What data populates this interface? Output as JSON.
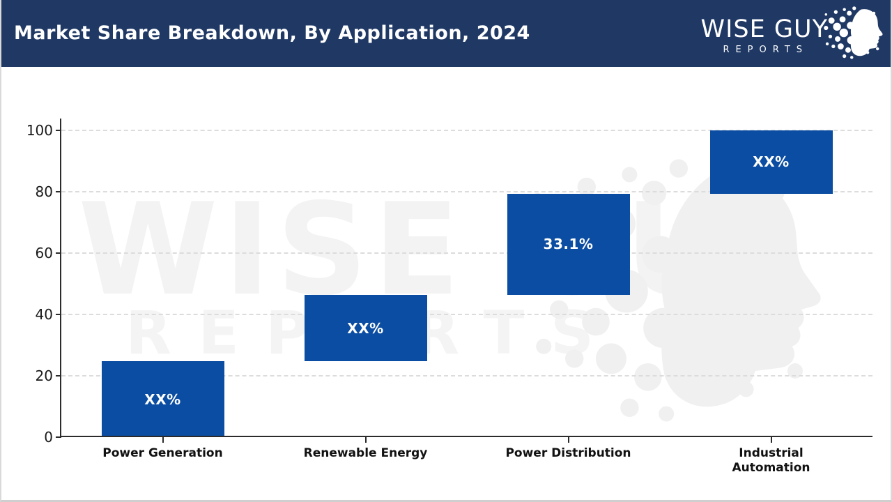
{
  "header": {
    "title": "Market Share Breakdown, By Application, 2024",
    "logo": {
      "line1": "WISE GUY",
      "line2": "REPORTS"
    }
  },
  "watermark": {
    "line1": "WISE GU",
    "line2": "REPORTS"
  },
  "colors": {
    "header_bg": "#1f3864",
    "bar": "#0b4da2",
    "grid": "#dcdcdc",
    "axis": "#2b2b2b",
    "tick_text": "#1a1a1a",
    "category_text": "#111111",
    "bar_label_text": "#ffffff",
    "watermark": "#f3f3f3"
  },
  "chart_data": {
    "type": "bar",
    "variant": "waterfall",
    "title": "Market Share Breakdown, By Application, 2024",
    "categories": [
      "Power Generation",
      "Renewable Energy",
      "Power Distribution",
      "Industrial Automation"
    ],
    "segments": [
      {
        "category": "Power Generation",
        "start": 0,
        "end": 24.7,
        "label": "XX%"
      },
      {
        "category": "Renewable Energy",
        "start": 24.7,
        "end": 46.3,
        "label": "XX%"
      },
      {
        "category": "Power Distribution",
        "start": 46.3,
        "end": 79.4,
        "label": "33.1%"
      },
      {
        "category": "Industrial Automation",
        "start": 79.4,
        "end": 100,
        "label": "XX%"
      }
    ],
    "yticks": [
      0,
      20,
      40,
      60,
      80,
      100
    ],
    "ylim": [
      0,
      100
    ],
    "xlabel": "",
    "ylabel": "",
    "grid": "horizontal-dashed",
    "legend": "none"
  }
}
